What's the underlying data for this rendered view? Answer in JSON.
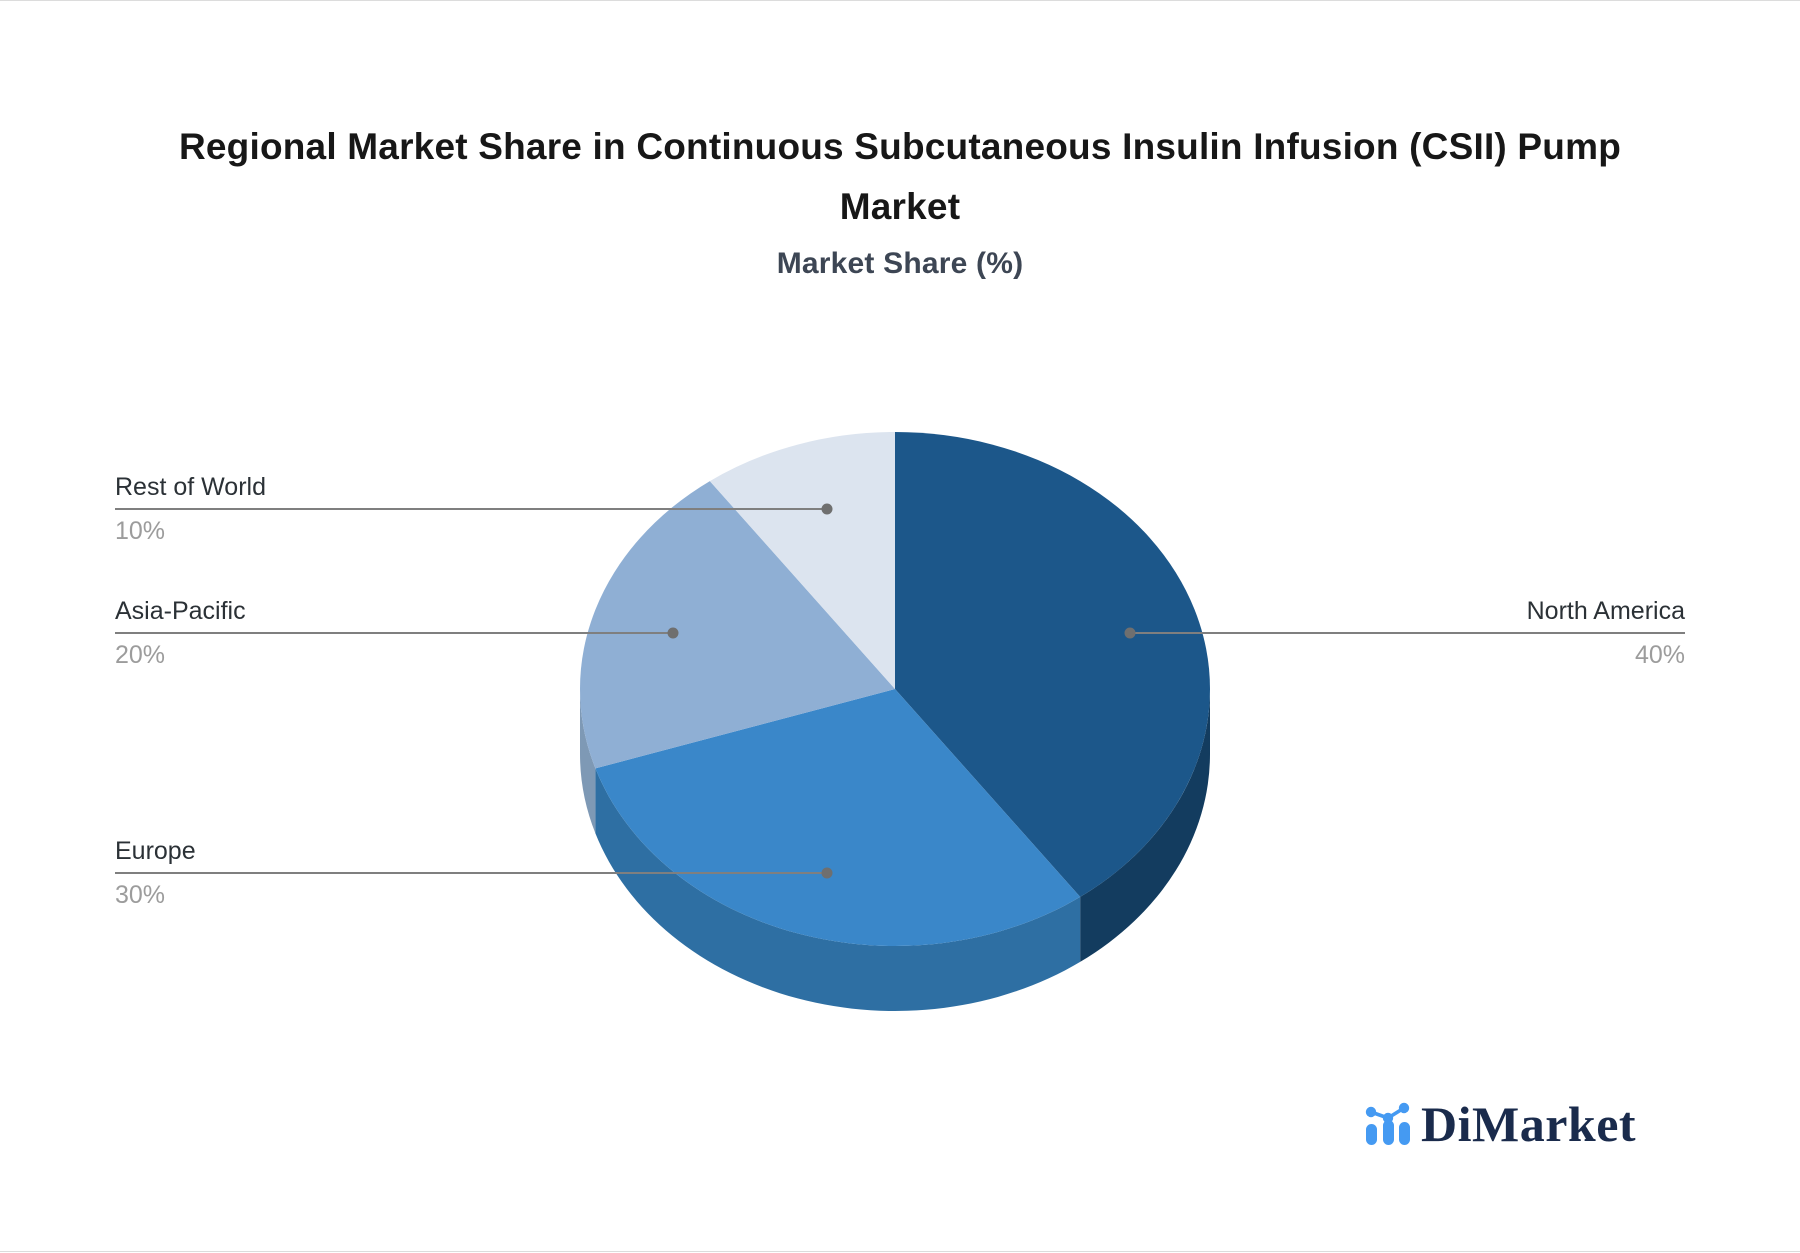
{
  "title": {
    "line1": "Regional Market Share in Continuous Subcutaneous Insulin Infusion (CSII) Pump",
    "line2": "Market",
    "subtitle": "Market Share (%)"
  },
  "chart_data": {
    "type": "pie",
    "style": "3d",
    "title": "Regional Market Share in Continuous Subcutaneous Insulin Infusion (CSII) Pump Market",
    "subtitle": "Market Share (%)",
    "unit": "%",
    "start_angle_deg": 0,
    "direction": "clockwise",
    "legend_position": "callout-labels",
    "slices": [
      {
        "label": "North America",
        "value": 40,
        "display": "40%",
        "color": "#1C578A",
        "side_color": "#133C5F"
      },
      {
        "label": "Europe",
        "value": 30,
        "display": "30%",
        "color": "#3A87C9",
        "side_color": "#2E6FA3"
      },
      {
        "label": "Asia-Pacific",
        "value": 20,
        "display": "20%",
        "color": "#8FAFD4",
        "side_color": "#7E99B5"
      },
      {
        "label": "Rest of World",
        "value": 10,
        "display": "10%",
        "color": "#DCE4EF",
        "side_color": "#B9C4D4"
      }
    ]
  },
  "callouts": {
    "line_color": "#7f7f7f",
    "dot_color": "#6f6f6f",
    "label_color": "#2b3136",
    "value_color": "#9c9c9c"
  },
  "branding": {
    "logo_text": "DiMarket",
    "logo_text_color": "#1a2b4c",
    "logo_icon": "bar-line-chart-icon",
    "logo_icon_color": "#459af2"
  }
}
